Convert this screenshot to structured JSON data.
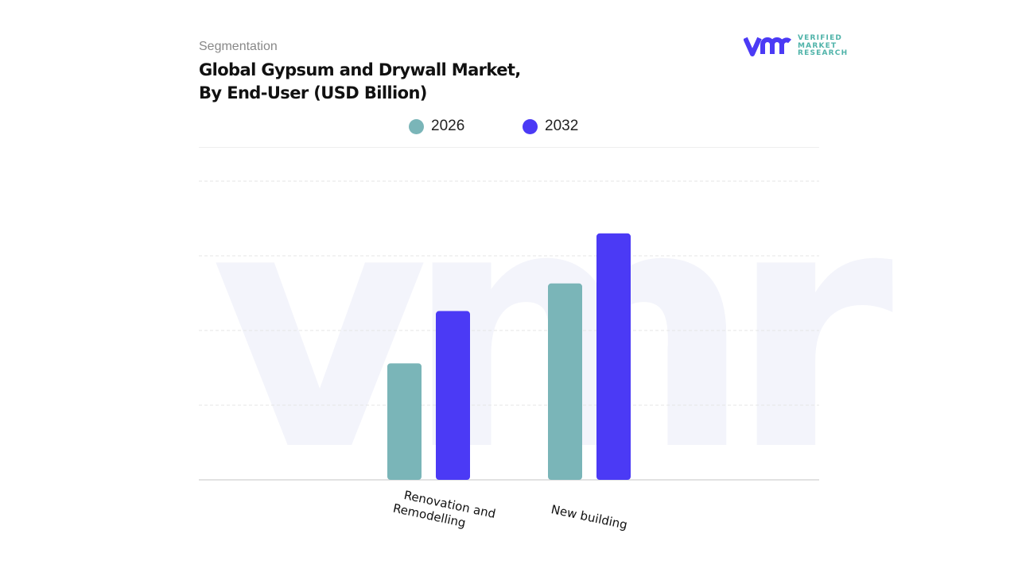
{
  "header": {
    "segment_label": "Segmentation",
    "title_line1": "Global Gypsum and Drywall Market,",
    "title_line2": "By End-User (USD Billion)"
  },
  "logo": {
    "mark": "vmr",
    "line1": "VERIFIED",
    "line2": "MARKET",
    "line3": "RESEARCH"
  },
  "colors": {
    "s2026": "#7ab5b8",
    "s2032": "#4b3af5",
    "grid": "#e6e6e6",
    "watermark": "#f3f4fb"
  },
  "chart_data": {
    "type": "bar",
    "title": "Global Gypsum and Drywall Market, By End-User (USD Billion)",
    "categories": [
      "Renovation and Remodelling",
      "New building"
    ],
    "category_lines": [
      [
        "Renovation and",
        "Remodelling"
      ],
      [
        "New building"
      ]
    ],
    "series": [
      {
        "name": "2026",
        "values": [
          1.56,
          2.63
        ]
      },
      {
        "name": "2032",
        "values": [
          2.26,
          3.3
        ]
      }
    ],
    "xlabel": "",
    "ylabel": "USD Billion",
    "ylim": [
      0,
      4
    ],
    "grid": true,
    "legend": "top-center"
  }
}
